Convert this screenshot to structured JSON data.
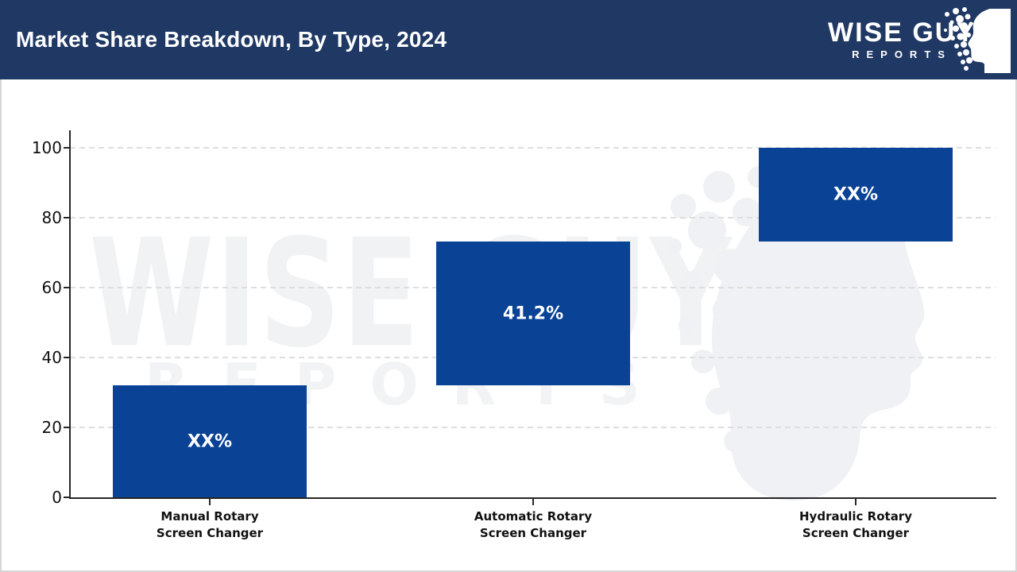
{
  "header": {
    "title": "Market Share Breakdown, By Type, 2024",
    "bg_color": "#1F3864",
    "logo": {
      "line1": "WISE GUY",
      "line2": "REPORTS"
    }
  },
  "watermark": {
    "line1": "WISE GUY",
    "line2": "REPORTS"
  },
  "chart_data": {
    "type": "bar",
    "subtype": "floating-segment-waterfall",
    "title": "Market Share Breakdown, By Type, 2024",
    "xlabel": "",
    "ylabel": "",
    "ylim": [
      0,
      100
    ],
    "yticks": [
      0,
      20,
      40,
      60,
      80,
      100
    ],
    "grid": "horizontal dashed",
    "legend": "none",
    "bar_color": "#0A4296",
    "bar_label_color": "#ffffff",
    "categories": [
      [
        "Manual Rotary",
        "Screen Changer"
      ],
      [
        "Automatic Rotary",
        "Screen Changer"
      ],
      [
        "Hydraulic Rotary",
        "Screen Changer"
      ]
    ],
    "segments": [
      {
        "start": 0,
        "end": 32,
        "height_pct": 32,
        "label": "XX%"
      },
      {
        "start": 32,
        "end": 73.2,
        "height_pct": 41.2,
        "label": "41.2%"
      },
      {
        "start": 73.2,
        "end": 100,
        "height_pct": 26.8,
        "label": "XX%"
      }
    ]
  }
}
